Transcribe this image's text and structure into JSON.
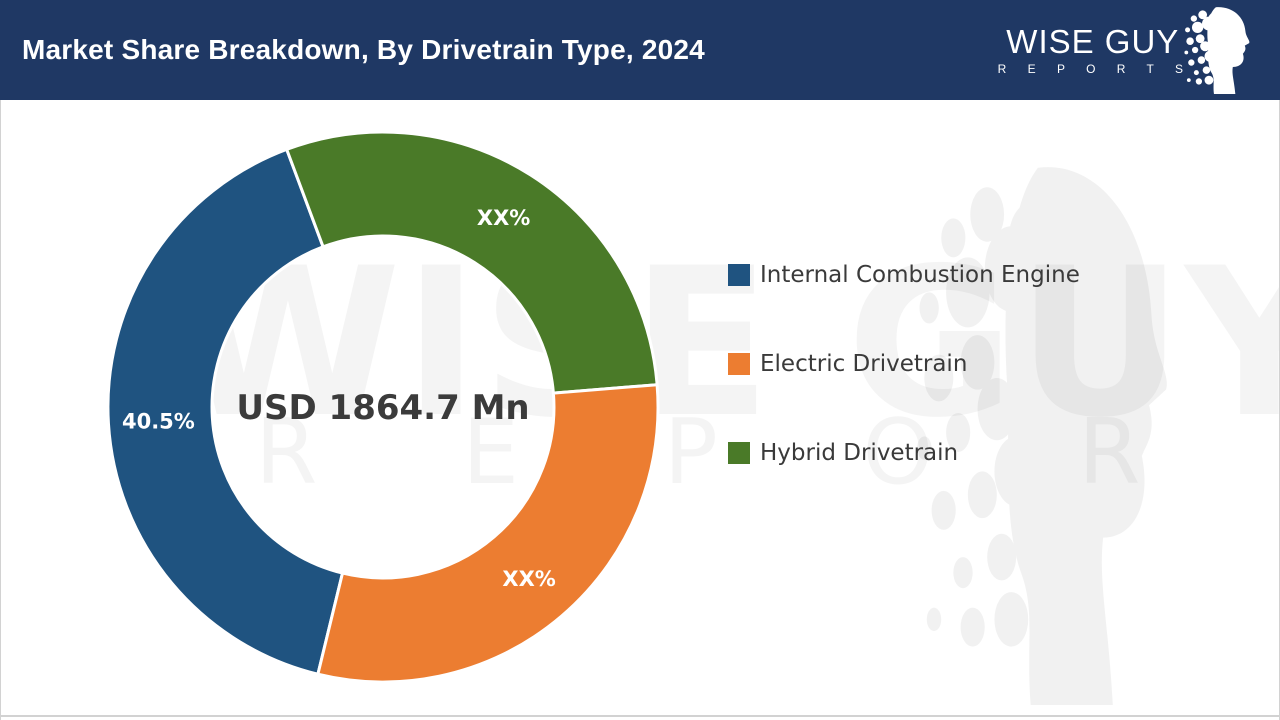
{
  "header": {
    "title": "Market Share Breakdown, By Drivetrain Type, 2024",
    "logo": {
      "wordmark": "WISE GUY",
      "subtext": "R E P O R T S"
    }
  },
  "watermark": {
    "line1": "WISE GUY",
    "line2": "R E P O R T S"
  },
  "colors": {
    "header_bg": "#1F3864",
    "ice_blue": "#1F5380",
    "electric_orange": "#EC7D31",
    "hybrid_green": "#4A7A28",
    "center_text": "#3B3B3B",
    "legend_text": "#3A3A3A"
  },
  "chart_data": {
    "type": "pie",
    "subtype": "donut",
    "title": "Market Share Breakdown, By Drivetrain Type, 2024",
    "center_label": "USD 1864.7 Mn",
    "legend_position": "right",
    "inner_radius_ratio": 0.62,
    "start_angle_deg": 193.7,
    "direction": "clockwise",
    "draw_order": [
      0,
      2,
      1
    ],
    "segments": [
      {
        "label": "Internal Combustion Engine",
        "display_label": "40.5%",
        "value_pct": 40.5,
        "color": "#1F5380"
      },
      {
        "label": "Electric Drivetrain",
        "display_label": "XX%",
        "value_pct": 30.1,
        "color": "#EC7D31"
      },
      {
        "label": "Hybrid Drivetrain",
        "display_label": "XX%",
        "value_pct": 29.4,
        "color": "#4A7A28"
      }
    ]
  }
}
